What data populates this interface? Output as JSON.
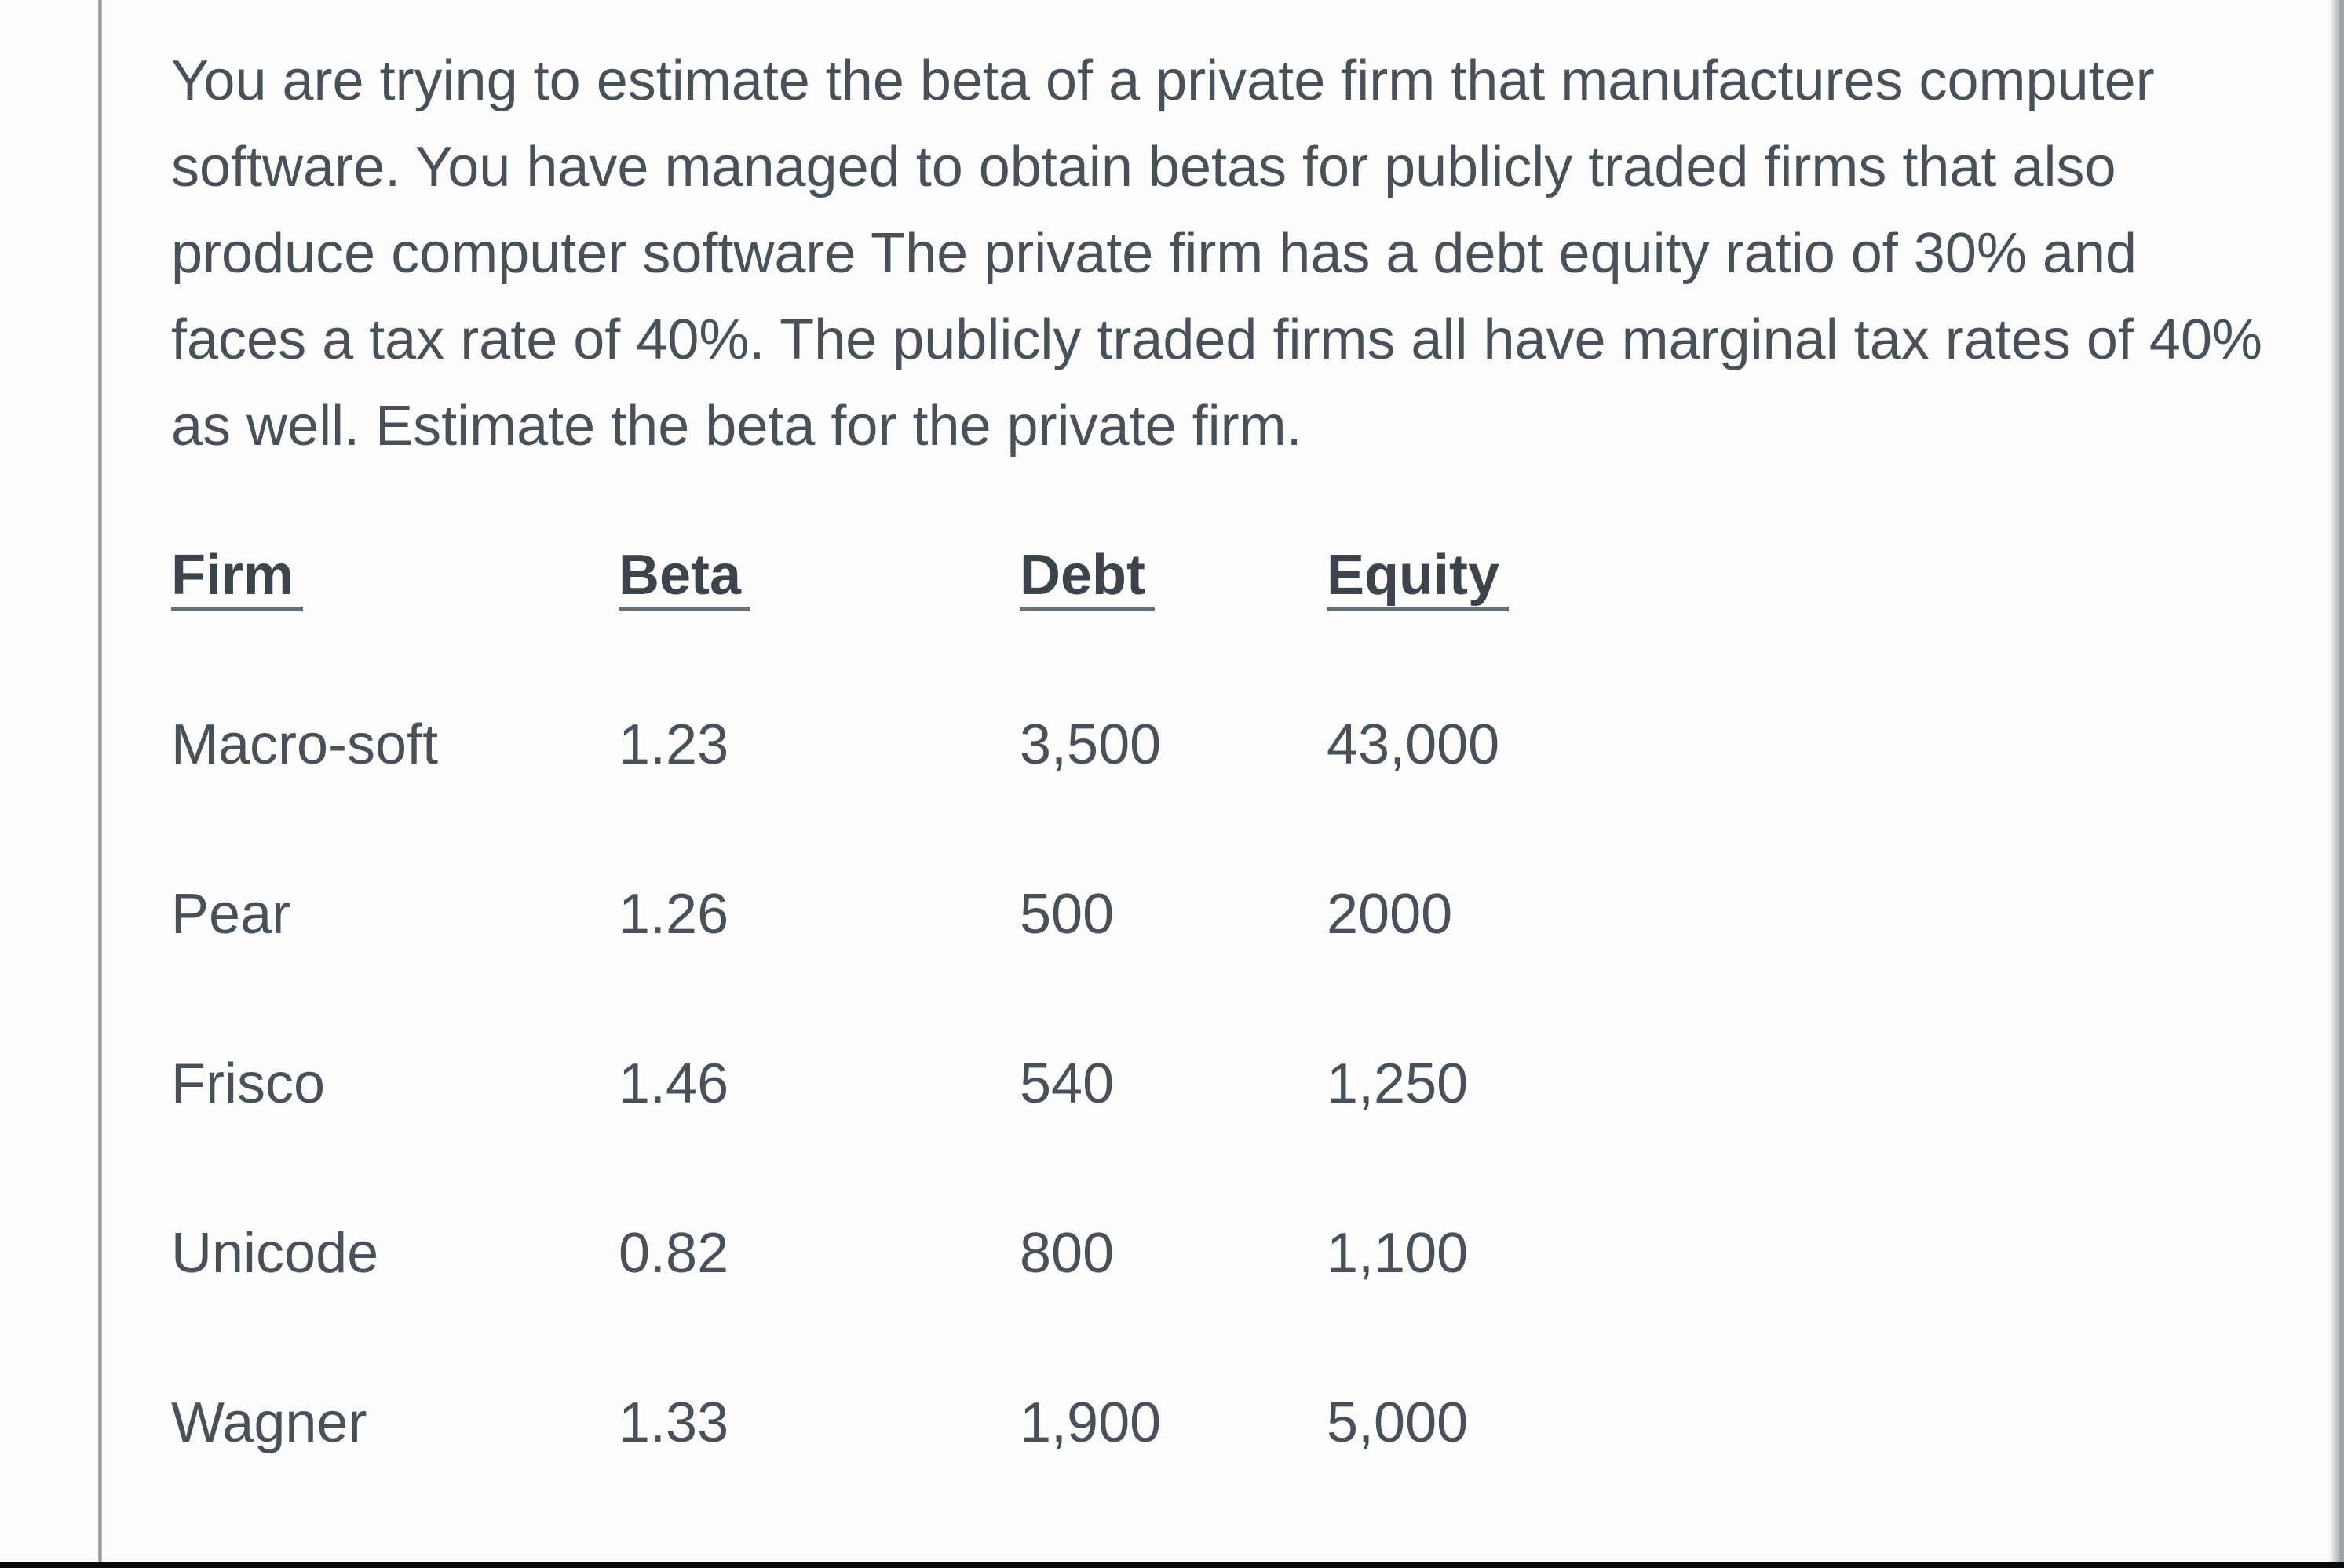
{
  "colors": {
    "background": "#fcfcfd",
    "body_text": "#4a5057",
    "header_text": "#3d434b",
    "header_underline": "#6b7074",
    "left_rule": "#8d9093",
    "right_band": "#95999d",
    "bottom_bar": "#0a0a0a"
  },
  "problem": {
    "lines": [
      "You are trying to estimate the beta of a private firm that manufactures computer",
      "software. You have managed to obtain betas for publicly traded firms that also",
      "produce computer software The private firm has a debt equity ratio of 30% and",
      "faces a tax rate of 40%. The publicly traded firms all have marginal tax rates of 40%",
      "as well. Estimate the beta for the private firm."
    ]
  },
  "table": {
    "headers": [
      "Firm",
      "Beta",
      "Debt",
      "Equity"
    ],
    "rows": [
      {
        "firm": "Macro-soft",
        "beta": "1.23",
        "debt": "3,500",
        "equity": "43,000"
      },
      {
        "firm": "Pear",
        "beta": "1.26",
        "debt": "500",
        "equity": "2000"
      },
      {
        "firm": "Frisco",
        "beta": "1.46",
        "debt": "540",
        "equity": "1,250"
      },
      {
        "firm": "Unicode",
        "beta": "0.82",
        "debt": "800",
        "equity": "1,100"
      },
      {
        "firm": "Wagner",
        "beta": "1.33",
        "debt": "1,900",
        "equity": "5,000"
      }
    ]
  }
}
